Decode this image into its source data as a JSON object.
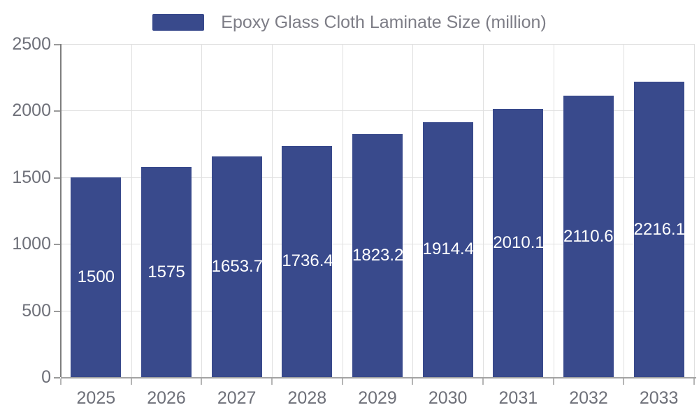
{
  "legend": {
    "label": "Epoxy Glass Cloth Laminate Size (million)"
  },
  "chart_data": {
    "type": "bar",
    "title": "",
    "xlabel": "",
    "ylabel": "",
    "categories": [
      "2025",
      "2026",
      "2027",
      "2028",
      "2029",
      "2030",
      "2031",
      "2032",
      "2033"
    ],
    "series": [
      {
        "name": "Epoxy Glass Cloth Laminate Size (million)",
        "values": [
          1500,
          1575,
          1653.75,
          1736.44,
          1823.26,
          1914.42,
          2010.14,
          2110.65,
          2216.18
        ],
        "value_labels": [
          "1500",
          "1575",
          "1653.75",
          "1736.44",
          "1823.26",
          "1914.42",
          "2010.14",
          "2110.65",
          "2216.18"
        ]
      }
    ],
    "ylim": [
      0,
      2500
    ],
    "y_ticks": [
      0,
      500,
      1000,
      1500,
      2000,
      2500
    ],
    "y_tick_labels": [
      "0",
      "500",
      "1000",
      "1500",
      "2000",
      "2500"
    ],
    "grid": true,
    "legend_position": "top",
    "value_label_position": "inside-middle",
    "colors": {
      "bar": "#394a8c",
      "value_label": "#ffffff",
      "gridline": "#e0e0e0",
      "axis_text": "#6e7079",
      "legend_text": "#7d7d86"
    }
  }
}
